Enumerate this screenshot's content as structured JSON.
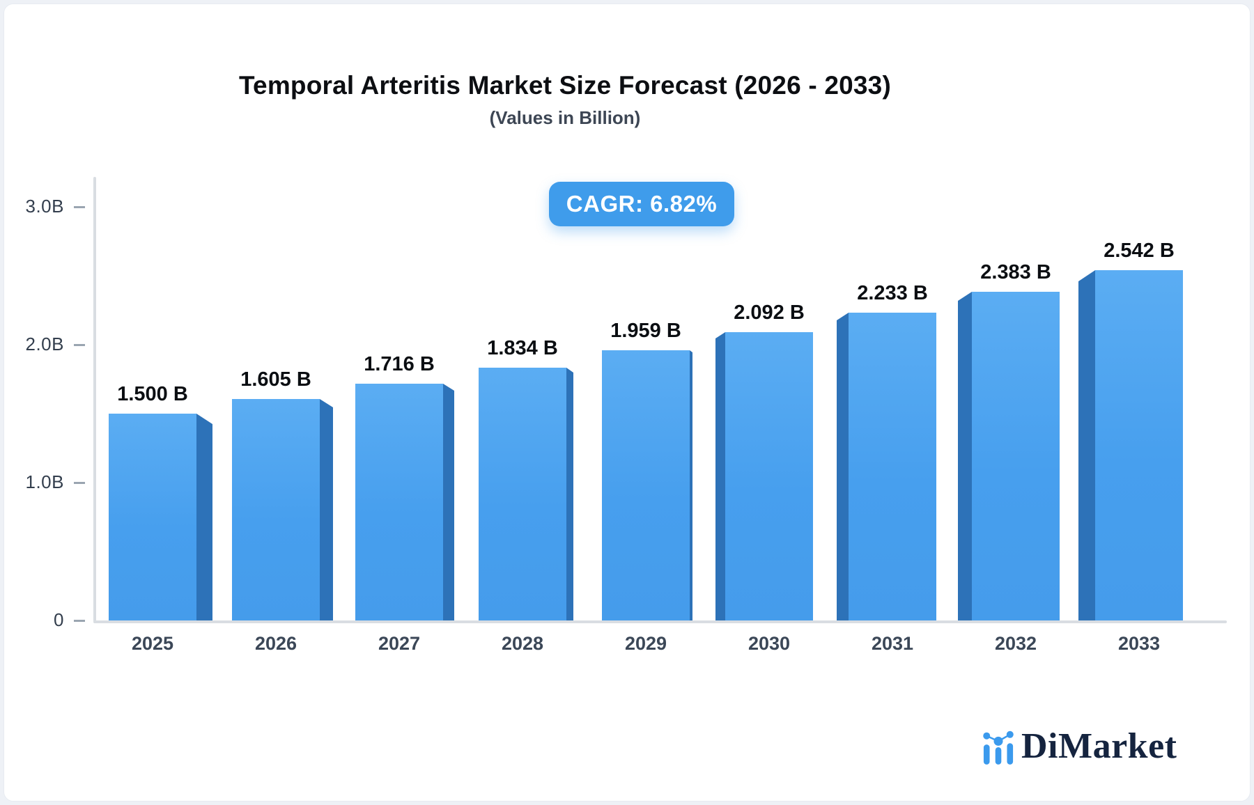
{
  "page": {
    "title": "Temporal Arteritis Market Size Forecast (2026 - 2033)",
    "subtitle": "(Values in Billion)",
    "badge": "CAGR: 6.82%",
    "brand": "DiMarket"
  },
  "colors": {
    "bar_front": "#4aa1ef",
    "bar_side": "#2d72b8",
    "badge_bg": "#3f9ceb",
    "axis_line": "#d9dde2",
    "brand_blue": "#3b9aed",
    "brand_navy": "#15243f"
  },
  "chart_data": {
    "type": "bar",
    "title": "Temporal Arteritis Market Size Forecast (2026 - 2033)",
    "subtitle": "(Values in Billion)",
    "annotation": "CAGR: 6.82%",
    "categories": [
      "2025",
      "2026",
      "2027",
      "2028",
      "2029",
      "2030",
      "2031",
      "2032",
      "2033"
    ],
    "values": [
      1.5,
      1.605,
      1.716,
      1.834,
      1.959,
      2.092,
      2.233,
      2.383,
      2.542
    ],
    "value_labels": [
      "1.500 B",
      "1.605 B",
      "1.716 B",
      "1.834 B",
      "1.959 B",
      "2.092 B",
      "2.233 B",
      "2.383 B",
      "2.542 B"
    ],
    "xlabel": "",
    "ylabel": "",
    "ylim": [
      0,
      3
    ],
    "grid": false,
    "legend": false,
    "yticks": [
      {
        "label": "3.0B",
        "value": 3.0
      },
      {
        "label": "2.0B",
        "value": 2.0
      },
      {
        "label": "1.0B",
        "value": 1.0
      },
      {
        "label": "0",
        "value": 0.0
      }
    ]
  }
}
